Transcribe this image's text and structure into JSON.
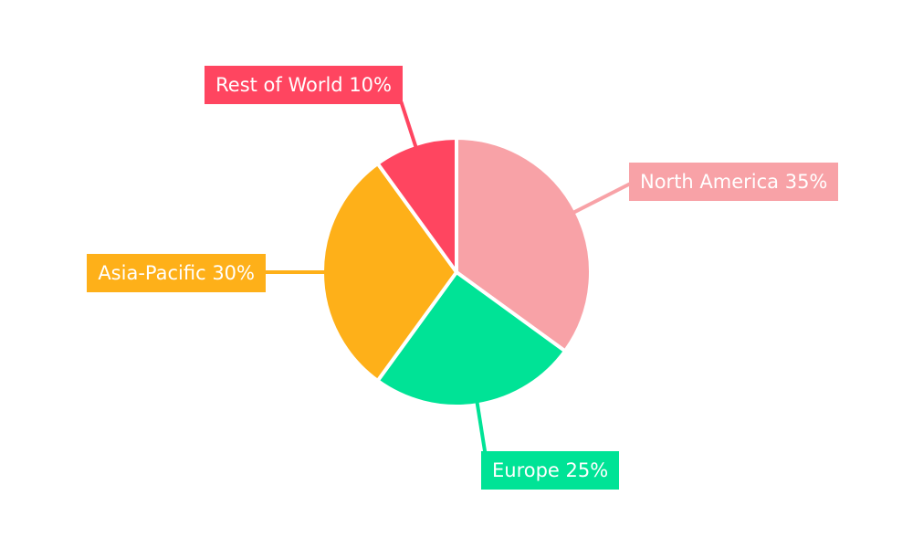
{
  "chart_data": {
    "type": "pie",
    "title": "",
    "legend_position": "none",
    "background": "#FFFFFF",
    "callout_text_color": "#FFFFFF",
    "slice_gap_color": "#FFFFFF",
    "direction": "clockwise",
    "start_angle_deg": 0,
    "categories": [
      "North America",
      "Europe",
      "Asia-Pacific",
      "Rest of World"
    ],
    "values": [
      35,
      25,
      30,
      10
    ],
    "unit": "%",
    "slices": [
      {
        "label": "North America",
        "value": 35,
        "color": "#F8A2A7",
        "callout": "North America 35%"
      },
      {
        "label": "Europe",
        "value": 25,
        "color": "#00E396",
        "callout": "Europe 25%"
      },
      {
        "label": "Asia-Pacific",
        "value": 30,
        "color": "#FEB019",
        "callout": "Asia-Pacific 30%"
      },
      {
        "label": "Rest of World",
        "value": 10,
        "color": "#FF4560",
        "callout": "Rest of World 10%"
      }
    ]
  }
}
